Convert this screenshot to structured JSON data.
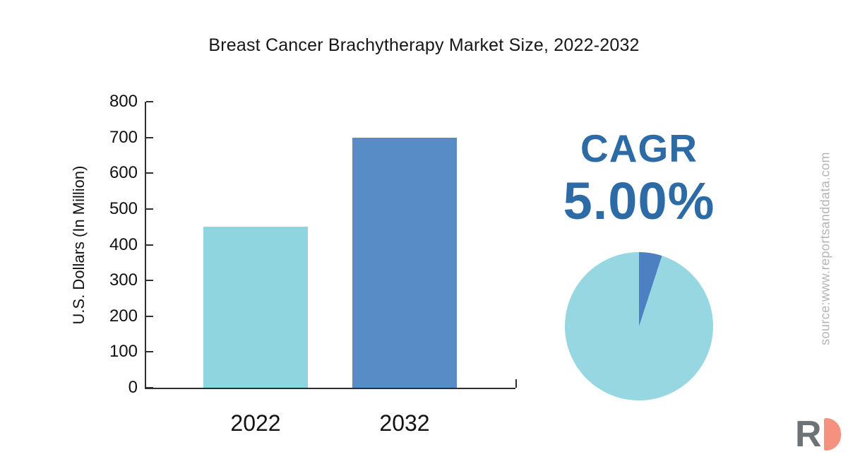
{
  "title": "Breast Cancer Brachytherapy Market Size, 2022-2032",
  "chart_data": [
    {
      "type": "bar",
      "title": "Breast Cancer Brachytherapy Market Size, 2022-2032",
      "categories": [
        "2022",
        "2032"
      ],
      "values": [
        450,
        700
      ],
      "bar_colors": [
        "#8ed5df",
        "#578cc7"
      ],
      "xlabel": "",
      "ylabel": "U.S. Dollars (In Million)",
      "ylim": [
        0,
        800
      ],
      "yticks": [
        0,
        100,
        200,
        300,
        400,
        500,
        600,
        700,
        800
      ],
      "grid": false,
      "legend": "none"
    },
    {
      "type": "pie",
      "start_angle_deg": 0,
      "direction": "clockwise",
      "slices": [
        {
          "label": "CAGR portion",
          "value": 5,
          "color": "#4d80c0"
        },
        {
          "label": "remainder",
          "value": 95,
          "color": "#96d7e2"
        }
      ]
    }
  ],
  "cagr": {
    "label": "CAGR",
    "value": "5.00%",
    "color": "#2d6ba6"
  },
  "source_note": "source:www.reportsanddata.com",
  "logo": {
    "letter": "R",
    "r_color": "#6d7277",
    "d_color": "#f4917f"
  },
  "colors": {
    "axis": "#2f2f2f",
    "text": "#121212",
    "source_text": "#b5b5b5"
  }
}
